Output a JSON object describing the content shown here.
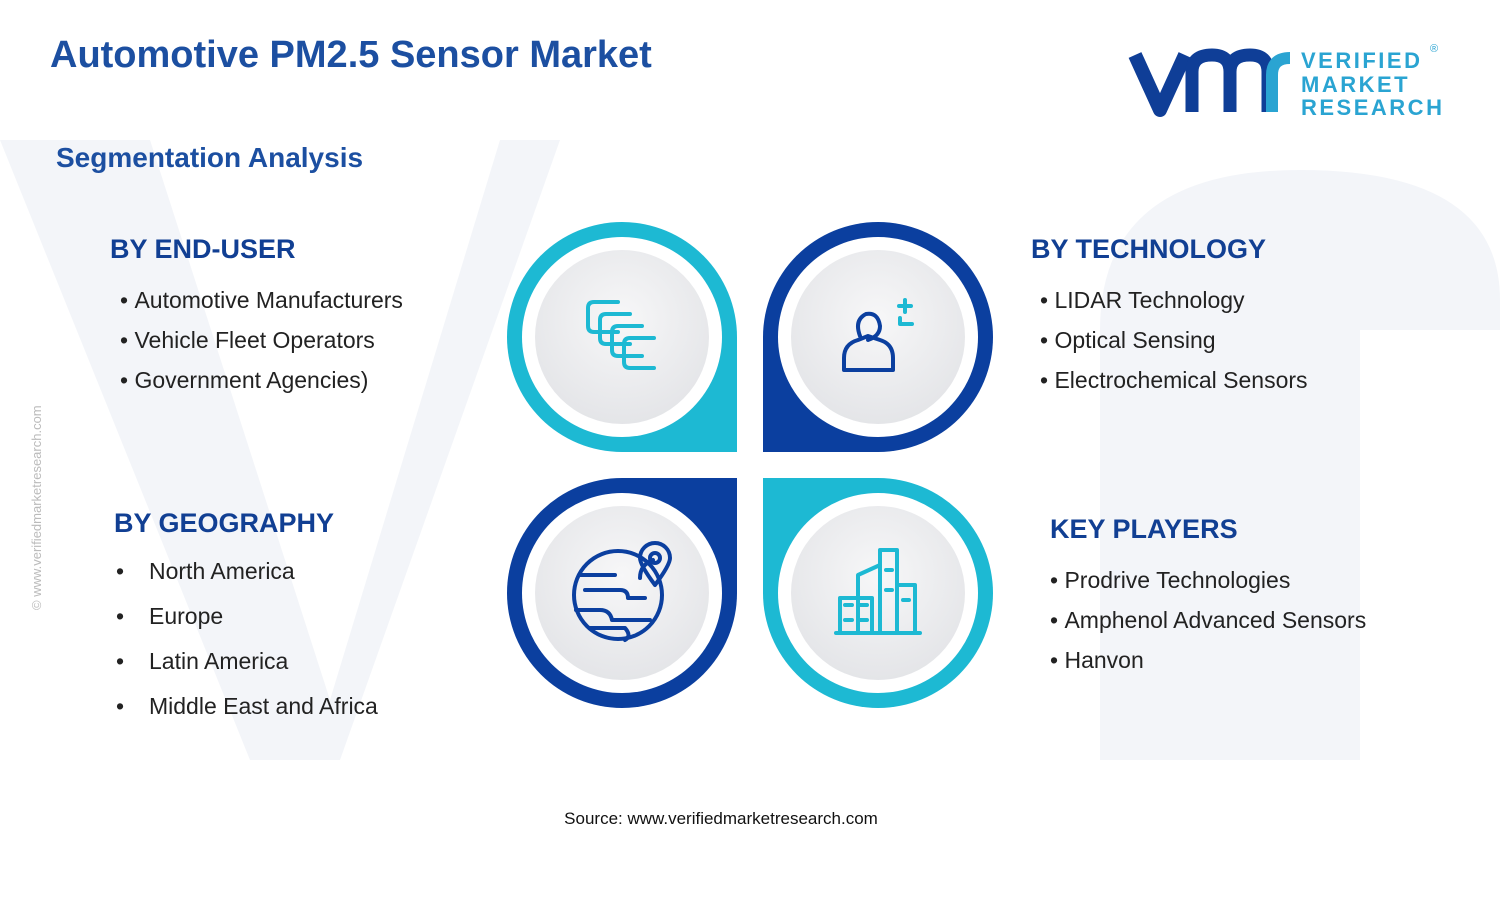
{
  "header": {
    "title": "Automotive PM2.5 Sensor Market",
    "subtitle": "Segmentation Analysis"
  },
  "logo": {
    "line1": "VERIFIED",
    "line2": "MARKET",
    "line3": "RESEARCH",
    "mark": "®"
  },
  "segments": [
    {
      "heading": "BY END-USER",
      "items": [
        "Automotive Manufacturers",
        "Vehicle Fleet Operators",
        "Government Agencies)"
      ]
    },
    {
      "heading": "BY TECHNOLOGY",
      "items": [
        "LIDAR Technology",
        "Optical Sensing",
        "Electrochemical Sensors"
      ]
    },
    {
      "heading": "BY GEOGRAPHY",
      "items": [
        "North America",
        "Europe",
        "Latin America",
        "Middle East and Africa"
      ]
    },
    {
      "heading": "KEY PLAYERS",
      "items": [
        "Prodrive Technologies",
        "Amphenol Advanced Sensors",
        "Hanvon"
      ]
    }
  ],
  "source": "Source: www.verifiedmarketresearch.com",
  "side_note": "© www.verifiedmarketresearch.com"
}
